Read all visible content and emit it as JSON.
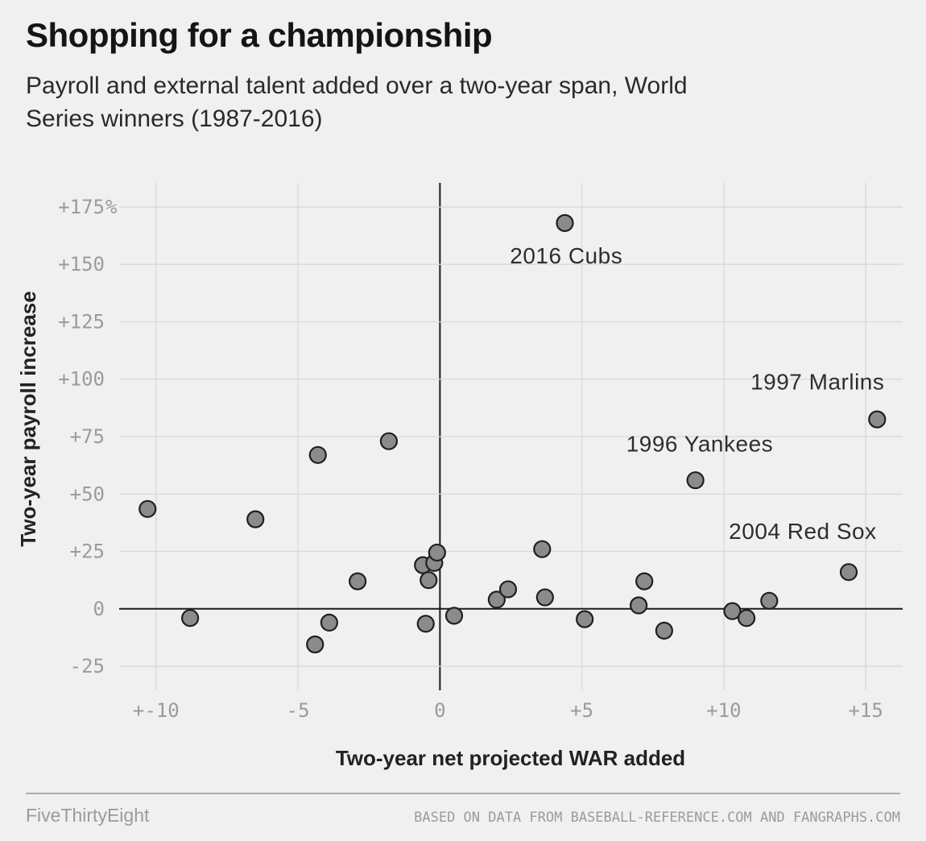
{
  "header": {
    "title": "Shopping for a championship",
    "subtitle": "Payroll and external talent added over a two-year span, World\nSeries winners (1987-2016)"
  },
  "footer": {
    "brand": "FiveThirtyEight",
    "source": "BASED ON DATA FROM BASEBALL-REFERENCE.COM AND FANGRAPHS.COM"
  },
  "colors": {
    "background": "#f0f0f0",
    "title": "#151515",
    "subtitle": "#2a2a2a",
    "grid": "#d8d8d8",
    "zero_line": "#1c1c1c",
    "tick_label": "#9b9b9b",
    "axis_title": "#222222",
    "annotation": "#2e2e2e",
    "point_fill": "#8b8b8b",
    "point_stroke": "#1f1f1f",
    "footer_text": "#9b9b9b",
    "footer_rule": "#ababab"
  },
  "chart_data": {
    "type": "scatter",
    "title": "Shopping for a championship",
    "subtitle": "Payroll and external talent added over a two-year span, World Series winners (1987-2016)",
    "xlabel": "Two-year net projected WAR added",
    "ylabel": "Two-year payroll increase",
    "xlim": [
      -11.3,
      16.3
    ],
    "ylim": [
      -35.5,
      185.5
    ],
    "grid": true,
    "legend": false,
    "x_ticks": [
      {
        "value": -10,
        "label": "+-10"
      },
      {
        "value": -5,
        "label": "-5"
      },
      {
        "value": 0,
        "label": "0"
      },
      {
        "value": 5,
        "label": "+5"
      },
      {
        "value": 10,
        "label": "+10"
      },
      {
        "value": 15,
        "label": "+15"
      }
    ],
    "y_ticks": [
      {
        "value": 175,
        "label": "+175",
        "suffix": "%"
      },
      {
        "value": 150,
        "label": "+150"
      },
      {
        "value": 125,
        "label": "+125"
      },
      {
        "value": 100,
        "label": "+100"
      },
      {
        "value": 75,
        "label": "+75"
      },
      {
        "value": 50,
        "label": "+50"
      },
      {
        "value": 25,
        "label": "+25"
      },
      {
        "value": 0,
        "label": "0"
      },
      {
        "value": -25,
        "label": "-25"
      }
    ],
    "points": [
      {
        "x": -10.3,
        "y": 43.5
      },
      {
        "x": -8.8,
        "y": -4
      },
      {
        "x": -6.5,
        "y": 39
      },
      {
        "x": -4.4,
        "y": -15.5
      },
      {
        "x": -4.3,
        "y": 67
      },
      {
        "x": -3.9,
        "y": -6
      },
      {
        "x": -2.9,
        "y": 12
      },
      {
        "x": -1.8,
        "y": 73
      },
      {
        "x": -0.6,
        "y": 19
      },
      {
        "x": -0.5,
        "y": -6.5
      },
      {
        "x": -0.4,
        "y": 12.5
      },
      {
        "x": -0.2,
        "y": 20
      },
      {
        "x": -0.1,
        "y": 24.5
      },
      {
        "x": 0.5,
        "y": -3
      },
      {
        "x": 2,
        "y": 4
      },
      {
        "x": 2.4,
        "y": 8.5
      },
      {
        "x": 3.6,
        "y": 26
      },
      {
        "x": 3.7,
        "y": 5
      },
      {
        "x": 4.4,
        "y": 168,
        "label": "2016 Cubs"
      },
      {
        "x": 5.1,
        "y": -4.5
      },
      {
        "x": 7,
        "y": 1.5
      },
      {
        "x": 7.2,
        "y": 12
      },
      {
        "x": 7.9,
        "y": -9.5
      },
      {
        "x": 9,
        "y": 56,
        "label": "1996 Yankees"
      },
      {
        "x": 10.3,
        "y": -1
      },
      {
        "x": 10.8,
        "y": -4
      },
      {
        "x": 11.6,
        "y": 3.5
      },
      {
        "x": 14.4,
        "y": 16,
        "label": "2004 Red Sox"
      },
      {
        "x": 15.4,
        "y": 82.5,
        "label": "1997 Marlins"
      }
    ],
    "annotations": [
      {
        "text": "2016 Cubs",
        "x": 4.45,
        "y": 154
      },
      {
        "text": "1997 Marlins",
        "x": 13.3,
        "y": 99
      },
      {
        "text": "1996 Yankees",
        "x": 9.15,
        "y": 72
      },
      {
        "text": "2004 Red Sox",
        "x": 12.78,
        "y": 34
      }
    ]
  }
}
